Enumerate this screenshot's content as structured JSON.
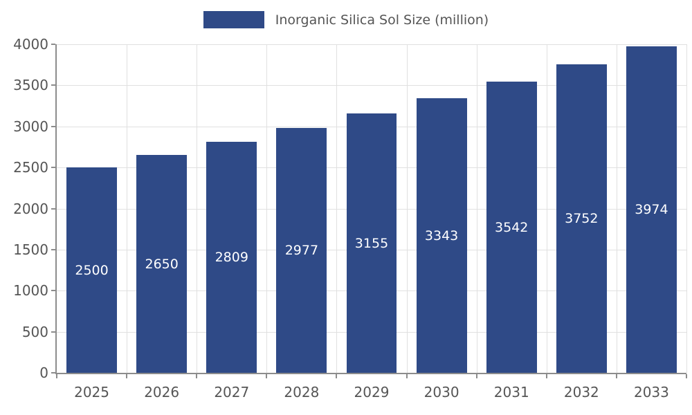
{
  "legend": {
    "label": "Inorganic Silica Sol Size (million)"
  },
  "chart_data": {
    "type": "bar",
    "title": "Inorganic Silica Sol Size (million)",
    "categories": [
      "2025",
      "2026",
      "2027",
      "2028",
      "2029",
      "2030",
      "2031",
      "2032",
      "2033"
    ],
    "values": [
      2500,
      2650,
      2809,
      2977,
      3155,
      3343,
      3542,
      3752,
      3974
    ],
    "data_labels": [
      "2500",
      "2650",
      "2809",
      "2977",
      "3155",
      "3343",
      "3542",
      "3752",
      "3974"
    ],
    "xlabel": "",
    "ylabel": "",
    "ylim": [
      0,
      4000
    ],
    "yticks": [
      0,
      500,
      1000,
      1500,
      2000,
      2500,
      3000,
      3500,
      4000
    ],
    "grid": true,
    "legend_position": "top",
    "bar_color": "#2F4A87",
    "value_label_color": "#ffffff",
    "axis_text_color": "#555555"
  }
}
